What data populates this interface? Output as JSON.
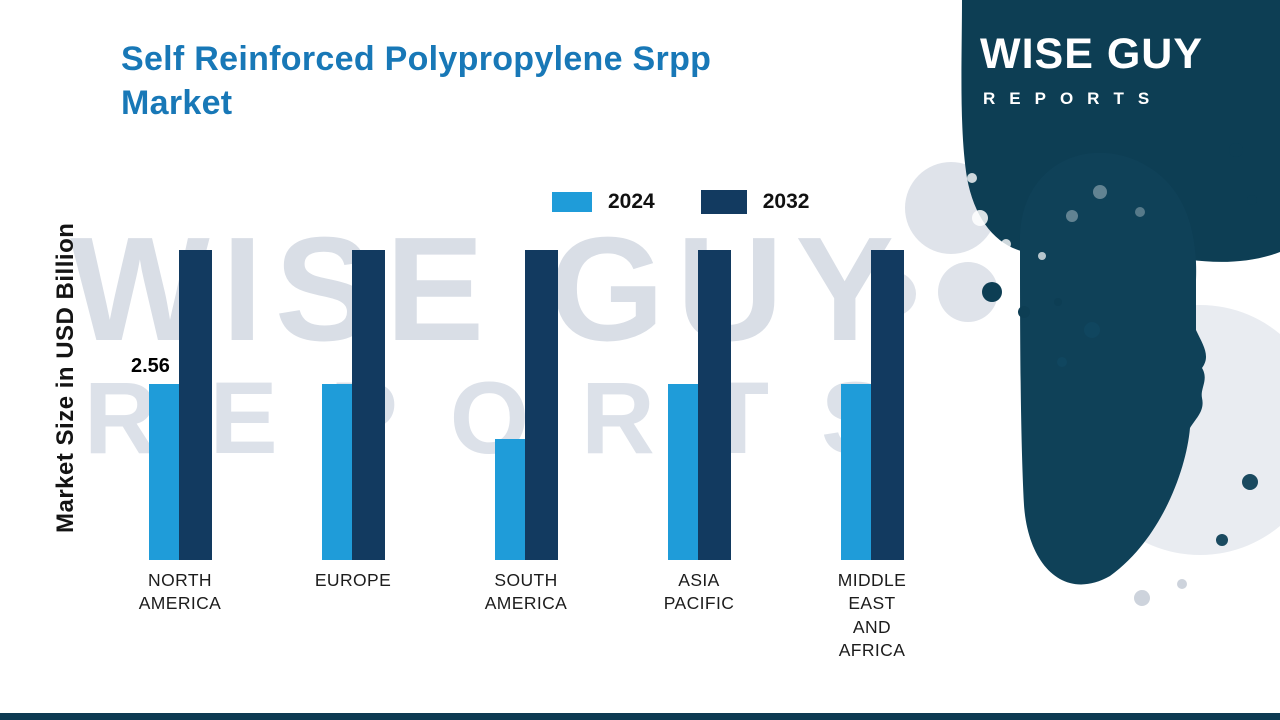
{
  "header": {
    "title_line1": "Self Reinforced Polypropylene  Srpp",
    "title_line2": "Market"
  },
  "logo": {
    "brand_line1": "WISE GUY",
    "brand_line2": "REPORTS"
  },
  "watermark": {
    "line1": "WISE GUY",
    "line2": "REPORTS"
  },
  "colors": {
    "title_blue": "#1878b7",
    "bar_2024": "#1f9cd9",
    "bar_2032": "#123a60",
    "corner_dark_teal": "#0d3e54",
    "watermark_gray": "#d9dee6",
    "footer_navy": "#0d3a52"
  },
  "chart_data": {
    "type": "bar",
    "title": "Self Reinforced Polypropylene Srpp Market",
    "xlabel": "",
    "ylabel": "Market Size in USD Billion",
    "categories": [
      "NORTH AMERICA",
      "EUROPE",
      "SOUTH AMERICA",
      "ASIA PACIFIC",
      "MIDDLE EAST AND AFRICA"
    ],
    "series": [
      {
        "name": "2024",
        "color": "#1f9cd9",
        "values": [
          2.56,
          2.56,
          1.75,
          2.56,
          2.56
        ]
      },
      {
        "name": "2032",
        "color": "#123a60",
        "values": [
          4.5,
          4.5,
          4.5,
          4.5,
          4.5
        ]
      }
    ],
    "data_labels": [
      {
        "series": "2024",
        "category": "NORTH AMERICA",
        "text": "2.56"
      }
    ],
    "ylim": [
      0,
      4.5
    ],
    "grid": false,
    "legend_position": "top"
  }
}
